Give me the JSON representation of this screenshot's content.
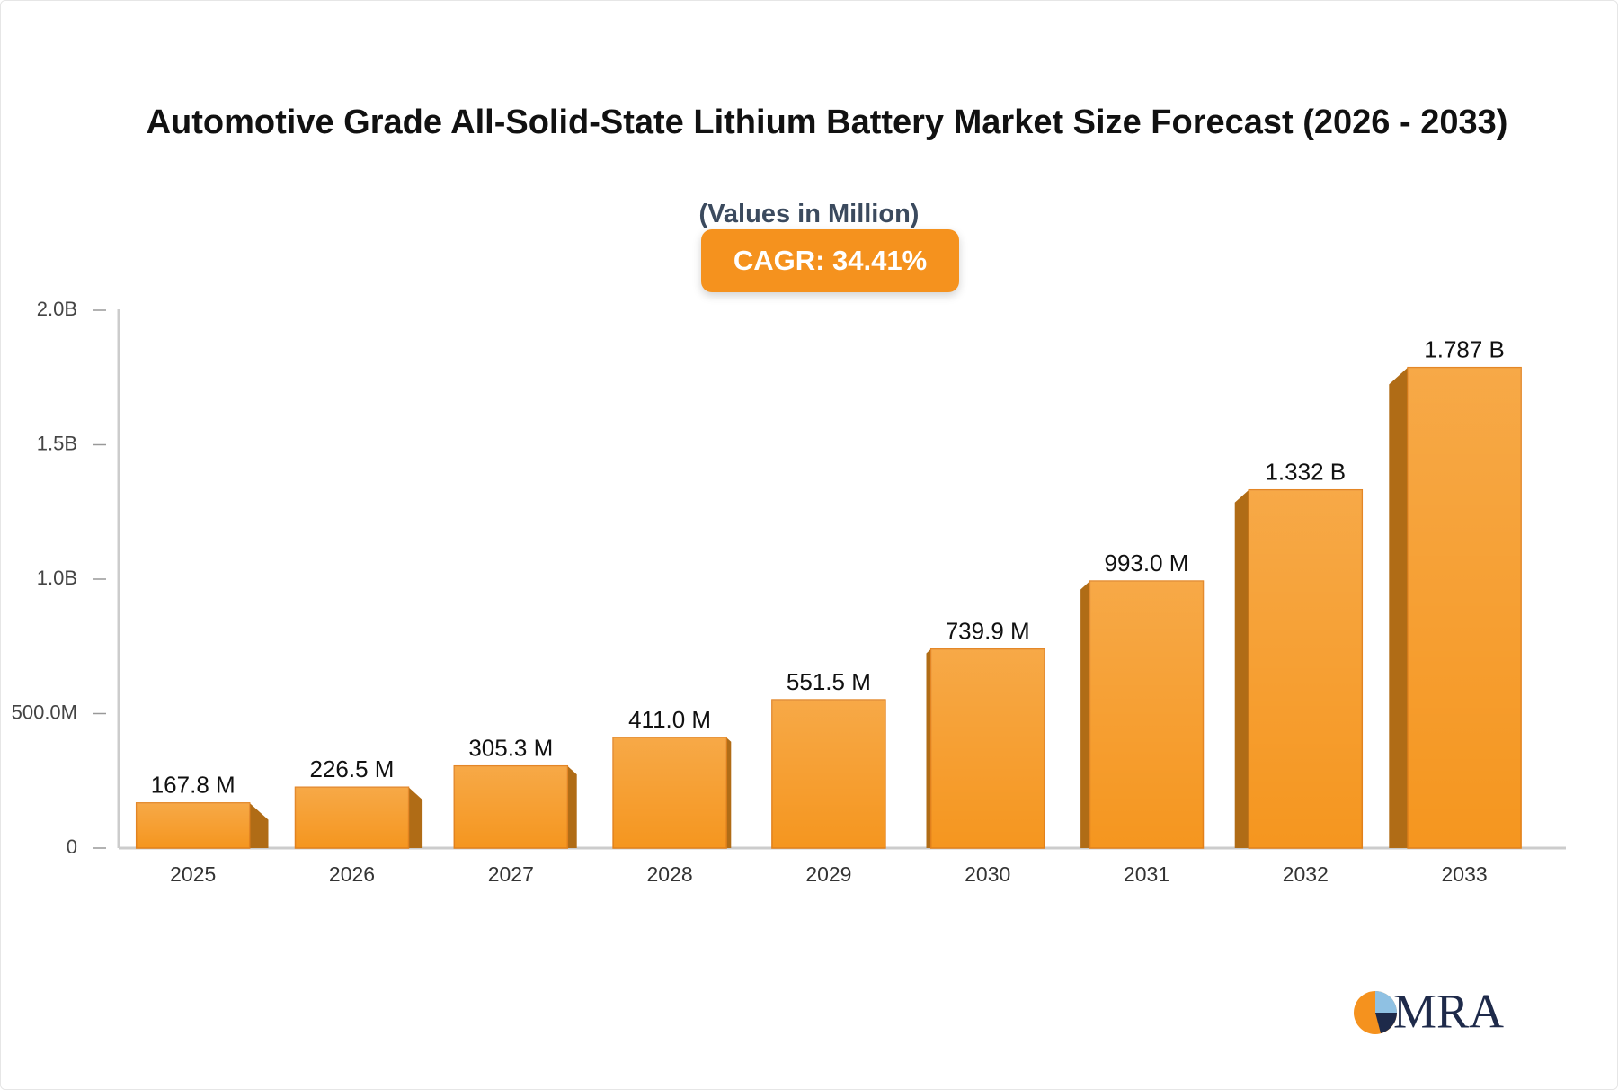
{
  "chart_data": {
    "type": "bar",
    "title": "Automotive Grade All-Solid-State Lithium Battery Market Size Forecast (2026 - 2033)",
    "subtitle": "(Values in Million)",
    "annotation": "CAGR: 34.41%",
    "categories": [
      "2025",
      "2026",
      "2027",
      "2028",
      "2029",
      "2030",
      "2031",
      "2032",
      "2033"
    ],
    "values": [
      167.8,
      226.5,
      305.3,
      411.0,
      551.5,
      739.9,
      993.0,
      1332,
      1787
    ],
    "value_labels": [
      "167.8 M",
      "226.5 M",
      "305.3 M",
      "411.0 M",
      "551.5 M",
      "739.9 M",
      "993.0 M",
      "1.332 B",
      "1.787 B"
    ],
    "color": "#f5961f",
    "ylim": [
      0,
      2000
    ],
    "yticks": [
      0,
      {
        "value": 500,
        "label": "500.0M"
      },
      {
        "value": 1000,
        "label": "1.0B"
      },
      {
        "value": 1500,
        "label": "1.5B"
      },
      {
        "value": 2000,
        "label": "2.0B"
      }
    ],
    "grid": false
  },
  "logo": "MRA"
}
